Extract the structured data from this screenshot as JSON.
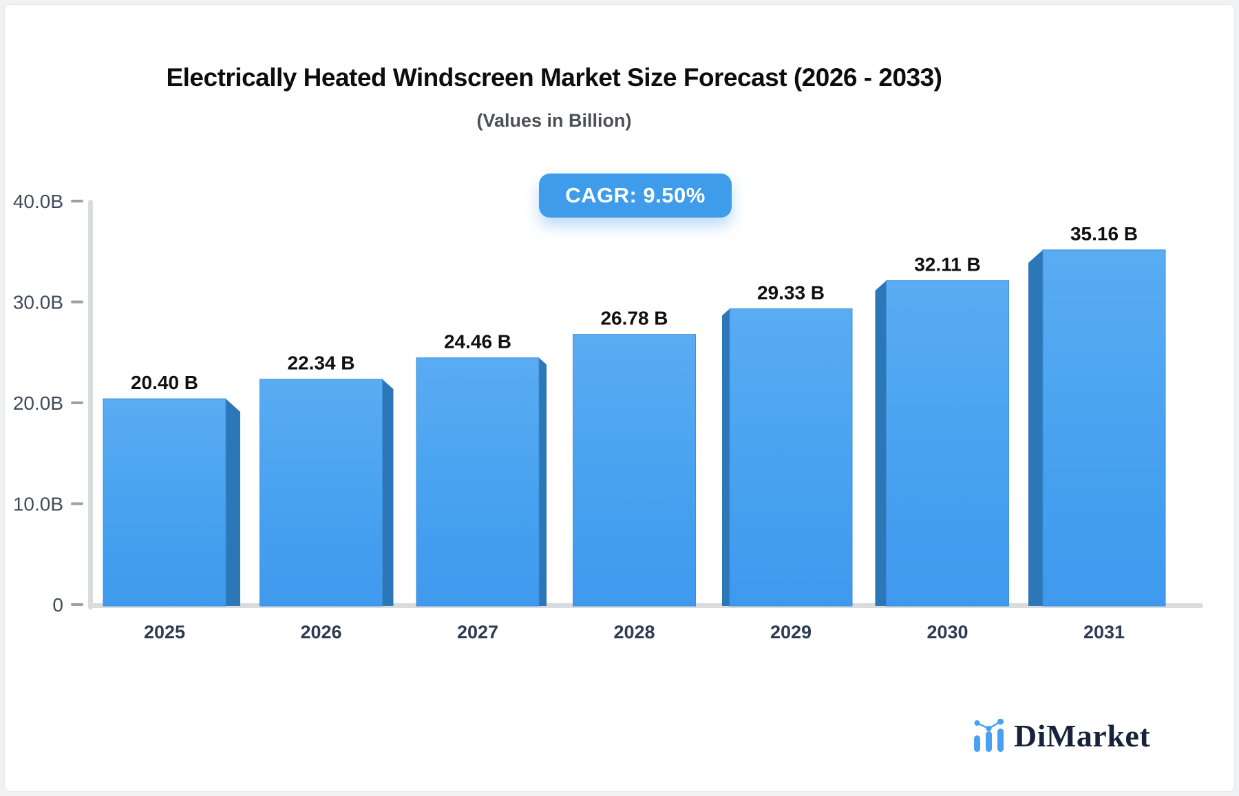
{
  "page": {
    "title": "Electrically Heated Windscreen Market Size Forecast (2026 - 2033)",
    "subtitle": "(Values in Billion)",
    "cagr_badge": "CAGR: 9.50%",
    "logo_text": "DiMarket"
  },
  "colors": {
    "accent_blue": "#3f9cea",
    "bar_face_top": "#5aacf2",
    "bar_face_bottom": "#3f99ee",
    "bar_side": "#2c77b8",
    "axis_line": "#d9dbdd",
    "tick_dash": "#99a1ab",
    "y_label": "#3f4a59",
    "x_label": "#2e3b52",
    "value_label": "#101010",
    "logo_navy": "#17233b"
  },
  "chart_data": {
    "type": "bar",
    "title": "Electrically Heated Windscreen Market Size Forecast (2026 - 2033)",
    "subtitle": "(Values in Billion)",
    "annotation": "CAGR: 9.50%",
    "categories": [
      "2025",
      "2026",
      "2027",
      "2028",
      "2029",
      "2030",
      "2031"
    ],
    "values": [
      20.4,
      22.34,
      24.46,
      26.78,
      29.33,
      32.11,
      35.16
    ],
    "value_labels": [
      "20.40 B",
      "22.34 B",
      "24.46 B",
      "26.78 B",
      "29.33 B",
      "32.11 B",
      "35.16 B"
    ],
    "series_unit": "Billion",
    "y_ticks": [
      "0",
      "10.0B",
      "20.0B",
      "30.0B",
      "40.0B"
    ],
    "y_tick_values": [
      0,
      10,
      20,
      30,
      40
    ],
    "ylim": [
      0,
      40
    ],
    "xlabel": "",
    "ylabel": "",
    "grid": false,
    "legend": false,
    "bar_style": "3d-extruded-toward-center"
  }
}
